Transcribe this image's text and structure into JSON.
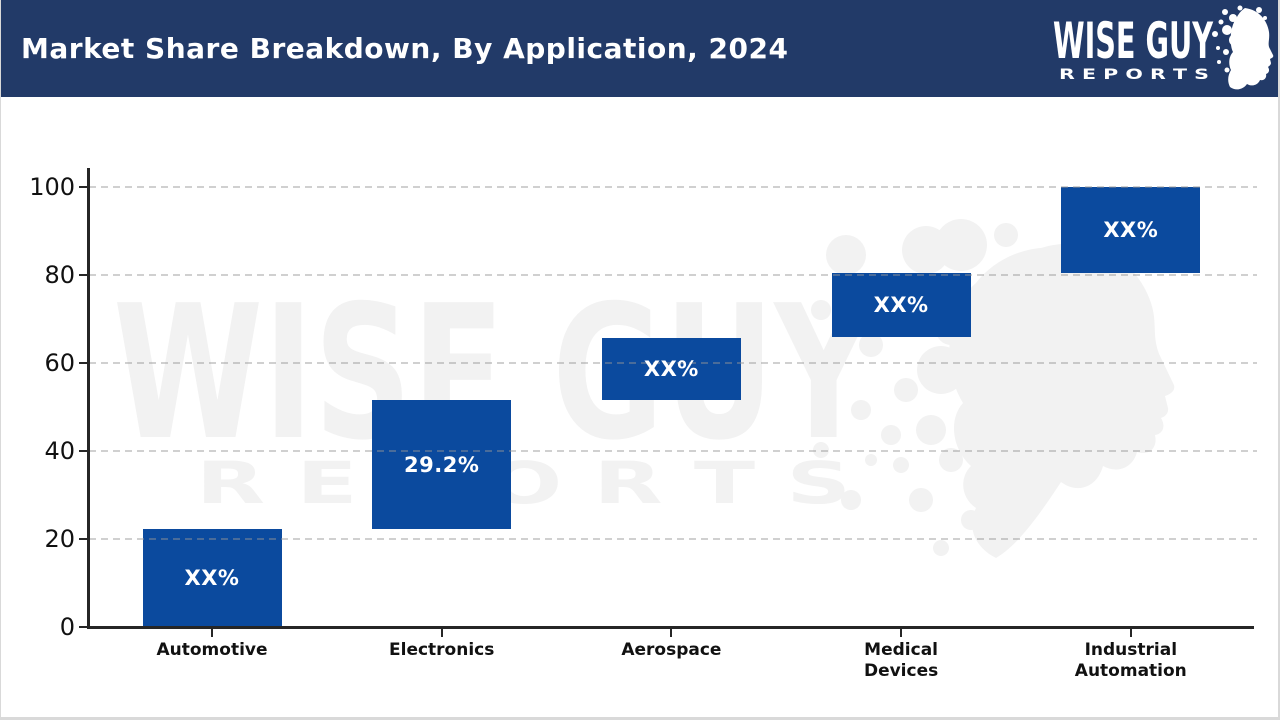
{
  "header": {
    "title": "Market Share Breakdown, By Application, 2024",
    "logo": {
      "line1": "WISE GUY",
      "line2": "R E P O R T S"
    }
  },
  "watermark": {
    "line1": "WISE GUY",
    "line2": "R E P O R T S"
  },
  "colors": {
    "header_bg": "#223a68",
    "bar": "#0b4a9e",
    "bar_label": "#ffffff",
    "axis": "#262626",
    "grid": "#c8c8c8",
    "watermark": "#f2f2f2",
    "title_text": "#ffffff"
  },
  "chart_data": {
    "type": "bar",
    "subtype": "waterfall",
    "title": "Market Share Breakdown, By Application, 2024",
    "xlabel": "",
    "ylabel": "",
    "ylim": [
      0,
      100
    ],
    "yticks": [
      0,
      20,
      40,
      60,
      80,
      100
    ],
    "grid": "horizontal-dashed-over-bars",
    "legend": "none",
    "categories": [
      "Automotive",
      "Electronics",
      "Aerospace",
      "Medical Devices",
      "Industrial Automation"
    ],
    "segments": [
      {
        "category": "Automotive",
        "start": 0,
        "end": 22.3,
        "label": "XX%"
      },
      {
        "category": "Electronics",
        "start": 22.3,
        "end": 51.5,
        "label": "29.2%"
      },
      {
        "category": "Aerospace",
        "start": 51.5,
        "end": 65.7,
        "label": "XX%"
      },
      {
        "category": "Medical Devices",
        "start": 66.0,
        "end": 80.5,
        "label": "XX%"
      },
      {
        "category": "Industrial Automation",
        "start": 80.5,
        "end": 100,
        "label": "XX%"
      }
    ]
  }
}
